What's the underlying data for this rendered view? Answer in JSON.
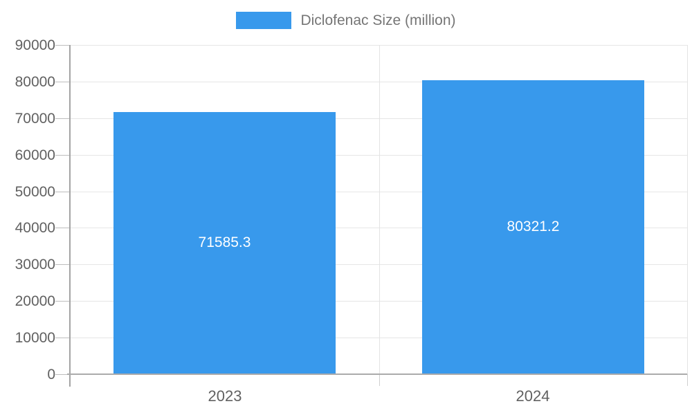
{
  "legend": {
    "label": "Diclofenac Size (million)",
    "swatch_color": "#3899EC",
    "position": "top"
  },
  "chart_data": {
    "type": "bar",
    "title": "",
    "xlabel": "",
    "ylabel": "",
    "categories": [
      "2023",
      "2024"
    ],
    "series": [
      {
        "name": "Diclofenac Size (million)",
        "color": "#3899EC",
        "values": [
          71585.3,
          80321.2
        ]
      }
    ],
    "value_labels": [
      "71585.3",
      "80321.2"
    ],
    "value_label_color": "#ffffff",
    "value_label_position": "center-of-bar",
    "ylim": [
      0,
      90000
    ],
    "ytick_interval": 10000,
    "yticks": [
      0,
      10000,
      20000,
      30000,
      40000,
      50000,
      60000,
      70000,
      80000,
      90000
    ],
    "grid": true,
    "legend_position": "top",
    "colors": {
      "bar": "#3899EC",
      "grid": "#e6e6e6",
      "axis": "#a8a8a8",
      "tick_text": "#616161",
      "legend_text": "#757575"
    }
  }
}
